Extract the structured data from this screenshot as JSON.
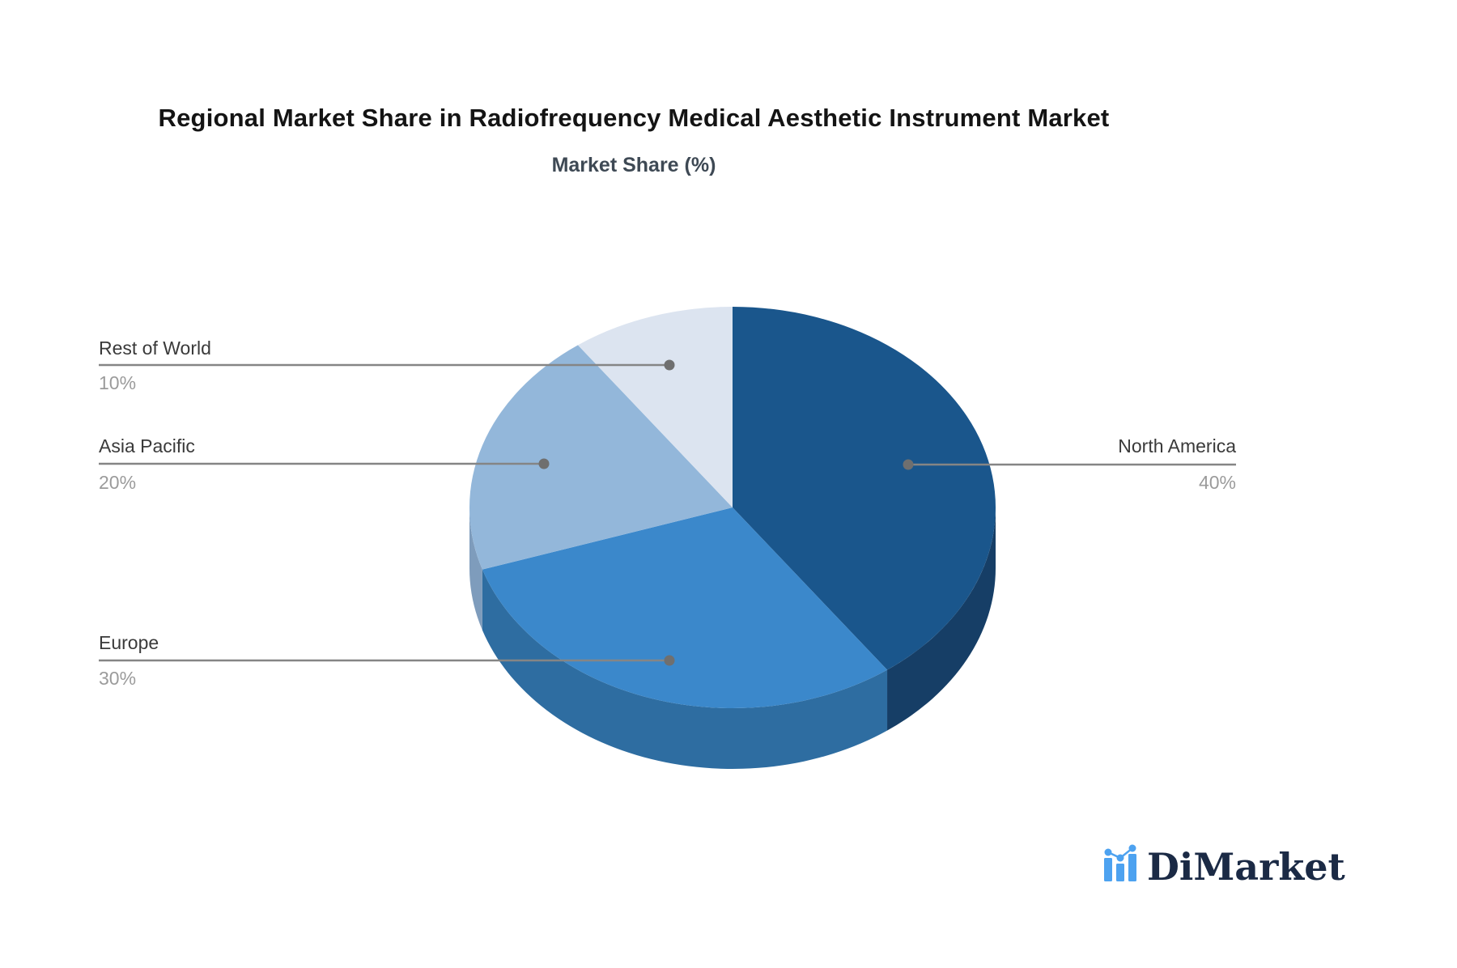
{
  "title": "Regional Market Share in Radiofrequency Medical Aesthetic Instrument Market",
  "subtitle": "Market Share (%)",
  "brand": {
    "name": "DiMarket",
    "icon": "bar-chart-trend-logo-icon",
    "icon_color": "#4DA2F0",
    "text_color": "#1B2A45"
  },
  "chart_data": {
    "type": "pie",
    "style": "3d",
    "start_angle": "top",
    "direction": "clockwise",
    "title": "Regional Market Share in Radiofrequency Medical Aesthetic Instrument Market",
    "units_label": "Market Share (%)",
    "legend_position": "callout-labels",
    "categories": [
      "North America",
      "Europe",
      "Asia Pacific",
      "Rest of World"
    ],
    "values": [
      40,
      30,
      20,
      10
    ],
    "slices": [
      {
        "label": "North America",
        "value": 40,
        "pct_label": "40%",
        "color": "#1A568C",
        "side_color": "#163E66"
      },
      {
        "label": "Europe",
        "value": 30,
        "pct_label": "30%",
        "color": "#3B88CB",
        "side_color": "#2E6DA1"
      },
      {
        "label": "Asia Pacific",
        "value": 20,
        "pct_label": "20%",
        "color": "#93B7DA",
        "side_color": "#7E9CBC"
      },
      {
        "label": "Rest of World",
        "value": 10,
        "pct_label": "10%",
        "color": "#DCE4F0",
        "side_color": "#C2CCDD"
      }
    ]
  }
}
